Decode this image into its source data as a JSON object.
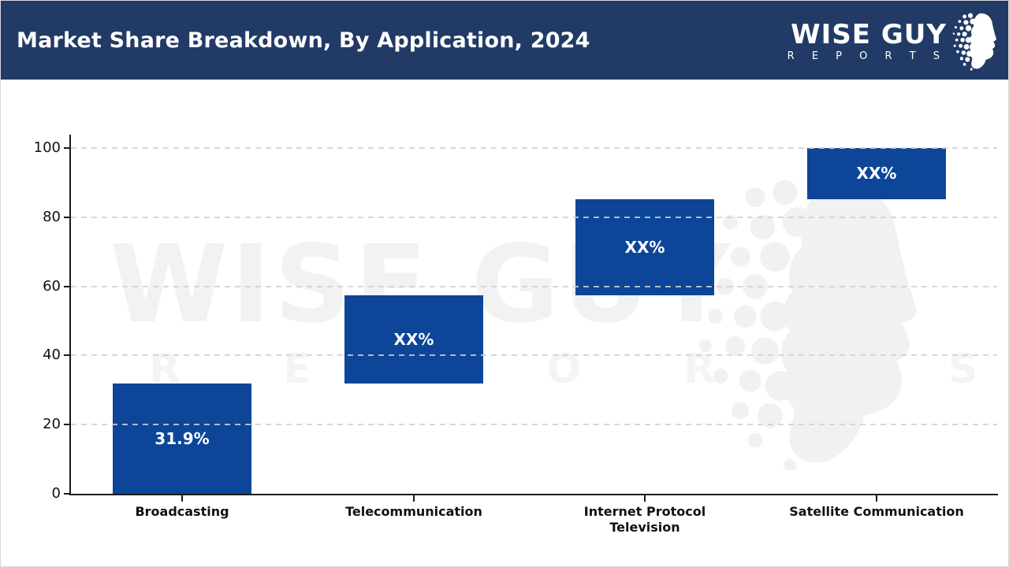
{
  "header": {
    "title": "Market Share Breakdown, By Application, 2024",
    "bg_color": "#213A66",
    "logo": {
      "wordmark": "WISE GUY",
      "subtext": "R E P O R T S"
    }
  },
  "watermark": {
    "wordmark": "WISE GUY",
    "subtext": "R E P O R T S"
  },
  "chart_data": {
    "type": "bar",
    "subtype": "waterfall",
    "title": "Market Share Breakdown, By Application, 2024",
    "categories": [
      "Broadcasting",
      "Telecommunication",
      "Internet Protocol Television",
      "Satellite Communication"
    ],
    "series": [
      {
        "name": "Market Share (%)",
        "starts": [
          0,
          31.9,
          57.4,
          85.3
        ],
        "ends": [
          31.9,
          57.4,
          85.3,
          100
        ]
      }
    ],
    "bar_labels": [
      "31.9%",
      "XX%",
      "XX%",
      "XX%"
    ],
    "yticks": [
      0,
      20,
      40,
      60,
      80,
      100
    ],
    "ytick_labels": [
      "0",
      "20",
      "40",
      "60",
      "80",
      "100"
    ],
    "ylim": [
      0,
      100
    ],
    "xlabel": "",
    "ylabel": "",
    "grid": "horizontal dashed",
    "legend": "none",
    "bar_color": "#0D4699",
    "grid_color": "#D0D0D0",
    "axis_color": "#1A1A1A",
    "bar_label_color": "#FFFFFF",
    "tick_label_color": "#111111"
  }
}
